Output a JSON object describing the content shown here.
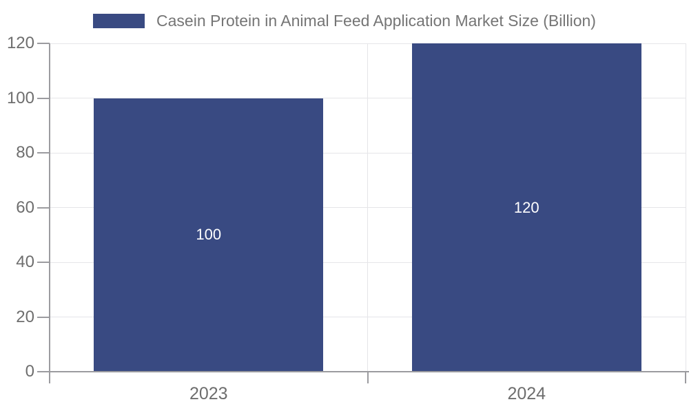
{
  "legend": {
    "label": "Casein Protein in Animal Feed Application Market Size (Billion)"
  },
  "chart_data": {
    "type": "bar",
    "title": "Casein Protein in Animal Feed Application Market Size (Billion)",
    "categories": [
      "2023",
      "2024"
    ],
    "series": [
      {
        "name": "Casein Protein in Animal Feed Application Market Size (Billion)",
        "values": [
          100,
          120
        ]
      }
    ],
    "bar_value_labels": [
      "100",
      "120"
    ],
    "xlabel": "",
    "ylabel": "",
    "ylim": [
      0,
      120
    ],
    "yticks": [
      0,
      20,
      40,
      60,
      80,
      100,
      120
    ],
    "grid": true,
    "legend_position": "top",
    "colors": {
      "bar": "#394A82",
      "grid_line": "#E5E5E8",
      "axis_line": "#9B9B9F",
      "tick_label": "#6E6E6E",
      "legend_text": "#757575",
      "bar_label": "#FFFFFF",
      "background": "#FFFFFF"
    }
  }
}
